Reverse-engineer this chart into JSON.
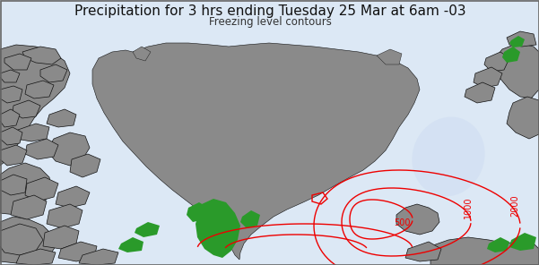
{
  "title": "Precipitation for 3 hrs ending Tuesday 25 Mar at 6am -03",
  "subtitle": "Freezing level contours",
  "title_fontsize": 11,
  "subtitle_fontsize": 8.5,
  "bg_color": "#dce8f5",
  "ocean_color": "#dce8f5",
  "greenland_outer": "#8a8a8a",
  "greenland_inner": "#a0a0a0",
  "land_color": "#8a8a8a",
  "land_edge": "#111111",
  "precip_green": "#2a9a2a",
  "contour_color": "#ee0000",
  "title_color": "#111111",
  "subtitle_color": "#333333",
  "fig_width": 6.01,
  "fig_height": 2.96,
  "dpi": 100
}
